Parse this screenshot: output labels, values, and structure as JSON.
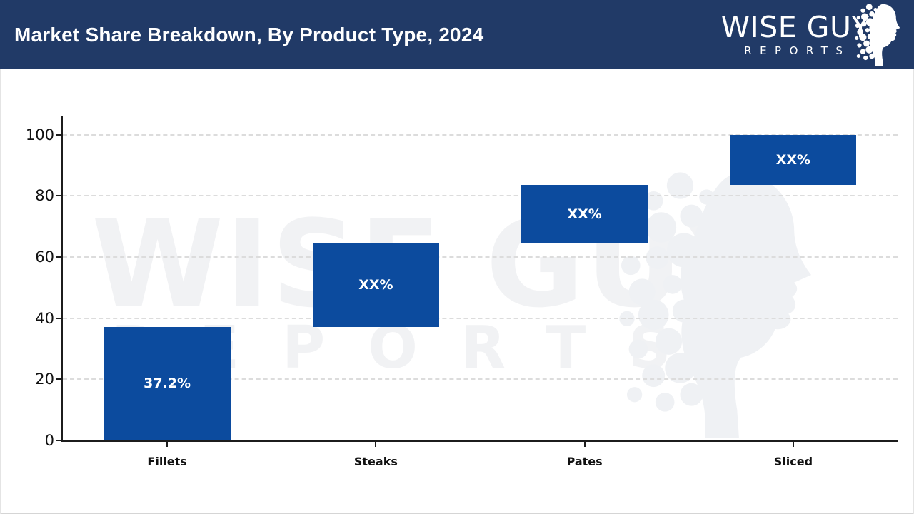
{
  "header": {
    "title": "Market Share Breakdown, By Product Type, 2024",
    "background_color": "#213A67",
    "logo": {
      "wordmark": "WISE GUY",
      "subtext": "REPORTS",
      "icon": "dotted-head-profile"
    }
  },
  "watermark": {
    "wordmark": "WISE GUY",
    "subtext": "REPORTS",
    "icon": "dotted-head-profile"
  },
  "chart_data": {
    "type": "bar",
    "variant": "waterfall",
    "title": "Market Share Breakdown, By Product Type, 2024",
    "xlabel": "",
    "ylabel": "",
    "categories": [
      "Fillets",
      "Steaks",
      "Pates",
      "Sliced"
    ],
    "series": [
      {
        "name": "Market share (%)",
        "segments": [
          {
            "category": "Fillets",
            "start": 0,
            "end": 37.2,
            "label": "37.2%"
          },
          {
            "category": "Steaks",
            "start": 37.2,
            "end": 64.6,
            "label": "XX%"
          },
          {
            "category": "Pates",
            "start": 64.6,
            "end": 83.6,
            "label": "XX%"
          },
          {
            "category": "Sliced",
            "start": 83.6,
            "end": 100,
            "label": "XX%"
          }
        ]
      }
    ],
    "yticks": [
      0,
      20,
      40,
      60,
      80,
      100
    ],
    "ylim": [
      0,
      106
    ],
    "grid": {
      "horizontal": true,
      "style": "dashed"
    },
    "legend": "none",
    "colors": {
      "bar": "#0C4B9E",
      "bar_label": "#FFFFFF",
      "axis": "#1C1C1C",
      "gridline": "#DCDCDC",
      "tick_label": "#111111"
    }
  }
}
